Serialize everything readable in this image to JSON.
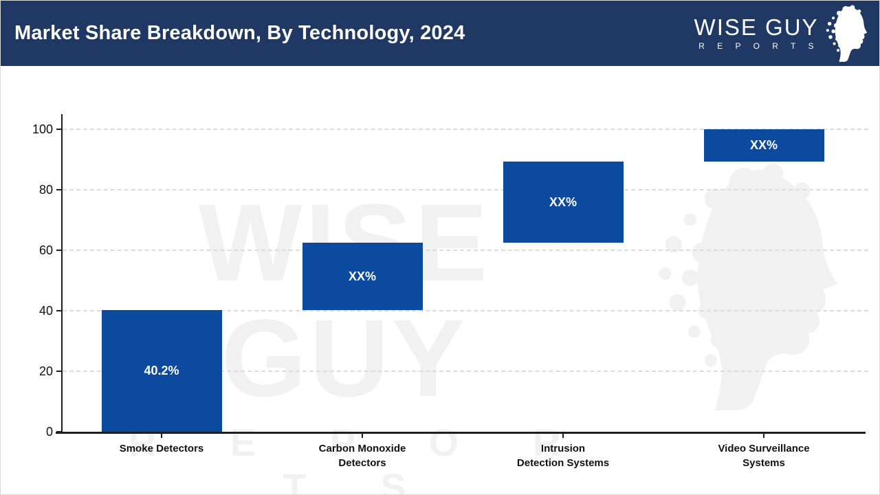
{
  "header": {
    "title": "Market Share Breakdown, By Technology, 2024",
    "brand": {
      "line1": "WISE GUY",
      "line2": "R E P O R T S"
    }
  },
  "watermark": {
    "line1": "WISE GUY",
    "line2": "R E P O R T S"
  },
  "chart_data": {
    "type": "bar",
    "subtype": "waterfall",
    "title": "Market Share Breakdown, By Technology, 2024",
    "xlabel": "",
    "ylabel": "",
    "yticks": [
      0,
      20,
      40,
      60,
      80,
      100
    ],
    "ylim": [
      0,
      105
    ],
    "grid": "horizontal-dashed",
    "legend": "none",
    "bar_color": "#0b4a9e",
    "bar_label_color": "#ffffff",
    "bars": [
      {
        "category_lines": [
          "Smoke Detectors"
        ],
        "label": "40.2%",
        "start": 0,
        "end": 40.2,
        "value": 40.2
      },
      {
        "category_lines": [
          "Carbon Monoxide",
          "Detectors"
        ],
        "label": "XX%",
        "start": 40.2,
        "end": 62.5,
        "value": 22.3
      },
      {
        "category_lines": [
          "Intrusion",
          "Detection Systems"
        ],
        "label": "XX%",
        "start": 62.5,
        "end": 89.3,
        "value": 26.8
      },
      {
        "category_lines": [
          "Video Surveillance",
          "Systems"
        ],
        "label": "XX%",
        "start": 89.3,
        "end": 100,
        "value": 10.7
      }
    ]
  },
  "colors": {
    "header_bg": "#1f3864",
    "bar_fill": "#0b4a9e",
    "axis": "#1f1f1f",
    "gridline": "#dcdcdc",
    "watermark": "#f1f1f1",
    "page_border": "#d9d9d9"
  }
}
